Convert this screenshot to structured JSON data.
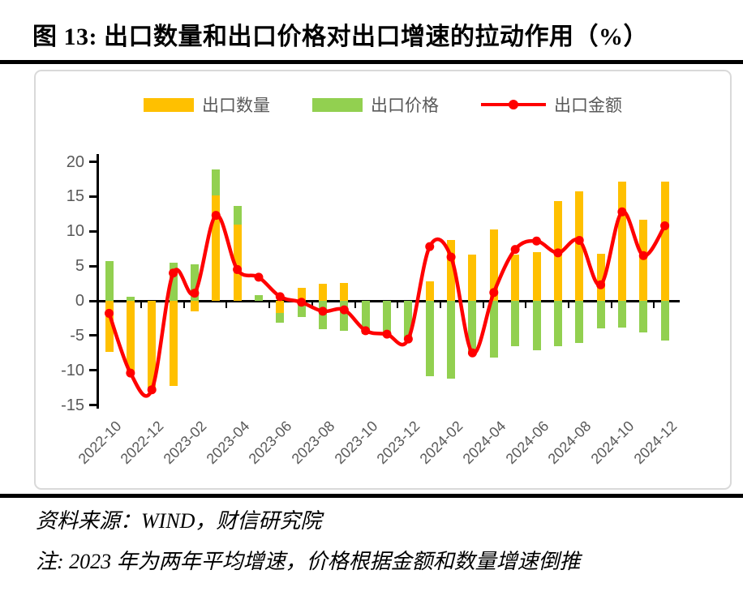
{
  "title": "图 13: 出口数量和出口价格对出口增速的拉动作用（%）",
  "footer": {
    "source_line": "资料来源：WIND，财信研究院",
    "note_line": "注: 2023 年为两年平均增速，价格根据金额和数量增速倒推"
  },
  "colors": {
    "quantity_bar": "#FFC000",
    "price_bar": "#92D050",
    "value_line": "#FF0000",
    "axis_label": "#595959",
    "panel_border": "#D9D9D9",
    "rule": "#000000"
  },
  "chart_data": {
    "type": "bar",
    "subtype": "stacked-bars-with-line-overlay",
    "grid": false,
    "legend_position": "top-center",
    "ylim": [
      -15,
      20
    ],
    "yticks": [
      20,
      15,
      10,
      5,
      0,
      -5,
      -10,
      -15
    ],
    "categories": [
      "2022-10",
      "2022-11",
      "2022-12",
      "2023-01",
      "2023-02",
      "2023-03",
      "2023-04",
      "2023-05",
      "2023-06",
      "2023-07",
      "2023-08",
      "2023-09",
      "2023-10",
      "2023-11",
      "2023-12",
      "2024-01",
      "2024-02",
      "2024-03",
      "2024-04",
      "2024-05",
      "2024-06",
      "2024-07",
      "2024-08",
      "2024-09",
      "2024-10",
      "2024-11",
      "2024-12"
    ],
    "x_tick_labels_shown": [
      "2022-10",
      "2022-12",
      "2023-02",
      "2023-04",
      "2023-06",
      "2023-08",
      "2023-10",
      "2023-12",
      "2024-02",
      "2024-04",
      "2024-06",
      "2024-08",
      "2024-10",
      "2024-12"
    ],
    "series": [
      {
        "name": "出口数量",
        "type": "bar",
        "color": "#FFC000",
        "values": [
          -7.3,
          -10.2,
          -12.4,
          -12.3,
          -1.5,
          15.2,
          11.0,
          0,
          -1.8,
          1.9,
          2.5,
          2.6,
          0,
          0,
          0,
          2.8,
          8.7,
          6.6,
          10.3,
          6.7,
          7.0,
          14.3,
          15.7,
          6.8,
          17.2,
          11.7,
          17.2
        ]
      },
      {
        "name": "出口价格",
        "type": "bar",
        "color": "#92D050",
        "values": [
          5.7,
          0.6,
          -0.4,
          5.5,
          5.3,
          3.7,
          2.6,
          0.8,
          -1.4,
          -2.3,
          -4.1,
          -4.3,
          -4.8,
          -4.8,
          -5.5,
          -10.8,
          -11.2,
          -7.7,
          -8.2,
          -6.5,
          -7.1,
          -6.5,
          -6.1,
          -4.0,
          -3.9,
          -4.6,
          -5.7
        ]
      },
      {
        "name": "出口金额",
        "type": "line",
        "color": "#FF0000",
        "values": [
          -1.8,
          -10.4,
          -12.8,
          4.0,
          1.1,
          12.3,
          4.5,
          3.4,
          0.6,
          -0.2,
          -1.5,
          -1.3,
          -4.3,
          -4.8,
          -5.5,
          7.8,
          6.3,
          -7.5,
          1.2,
          7.4,
          8.6,
          6.9,
          8.7,
          2.3,
          12.8,
          6.5,
          10.8
        ]
      }
    ]
  }
}
